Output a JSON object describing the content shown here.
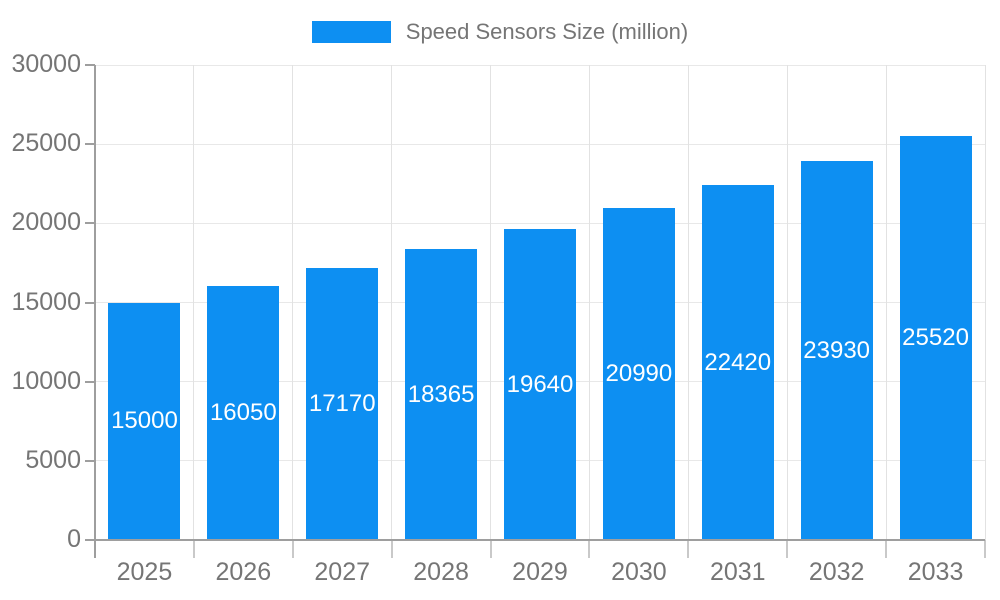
{
  "legend": {
    "label": "Speed Sensors Size (million)",
    "swatch_color": "#0d8ff2"
  },
  "chart_data": {
    "type": "bar",
    "title": "Speed Sensors Size (million)",
    "categories": [
      "2025",
      "2026",
      "2027",
      "2028",
      "2029",
      "2030",
      "2031",
      "2032",
      "2033"
    ],
    "series": [
      {
        "name": "Speed Sensors Size (million)",
        "values": [
          15000,
          16050,
          17170,
          18365,
          19640,
          20990,
          22420,
          23930,
          25520
        ]
      }
    ],
    "xlabel": "",
    "ylabel": "",
    "ylim": [
      0,
      30000
    ],
    "yticks": [
      0,
      5000,
      10000,
      15000,
      20000,
      25000,
      30000
    ],
    "grid": true,
    "legend_position": "top-center",
    "value_label_position": "inside-middle",
    "colors": {
      "bar": "#0d8ff2",
      "value_label": "#ffffff",
      "axis_text": "#757575",
      "hgrid_line": "#e8e8e8",
      "vgrid_line": "#e2e2e2",
      "axis_line": "#9e9e9e",
      "background": "#ffffff"
    }
  }
}
